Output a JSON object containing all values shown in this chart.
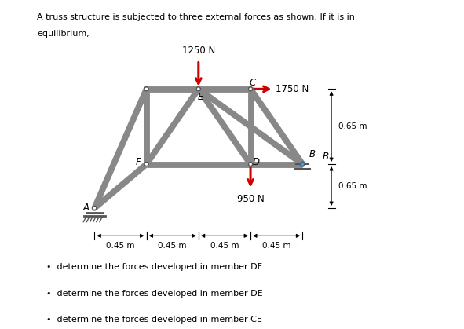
{
  "title_line1": "A truss structure is subjected to three external forces as shown. If it is in",
  "title_line2": "equilibrium,",
  "bg_color": "#ffffff",
  "truss_color": "#888888",
  "force_color": "#cc0000",
  "node_color": "#555555",
  "bullet_items": [
    "determine the forces developed in member DF",
    "determine the forces developed in member DE",
    "determine the forces developed in member CE"
  ],
  "support_pin_color": "#4488cc",
  "lw": 3.5
}
